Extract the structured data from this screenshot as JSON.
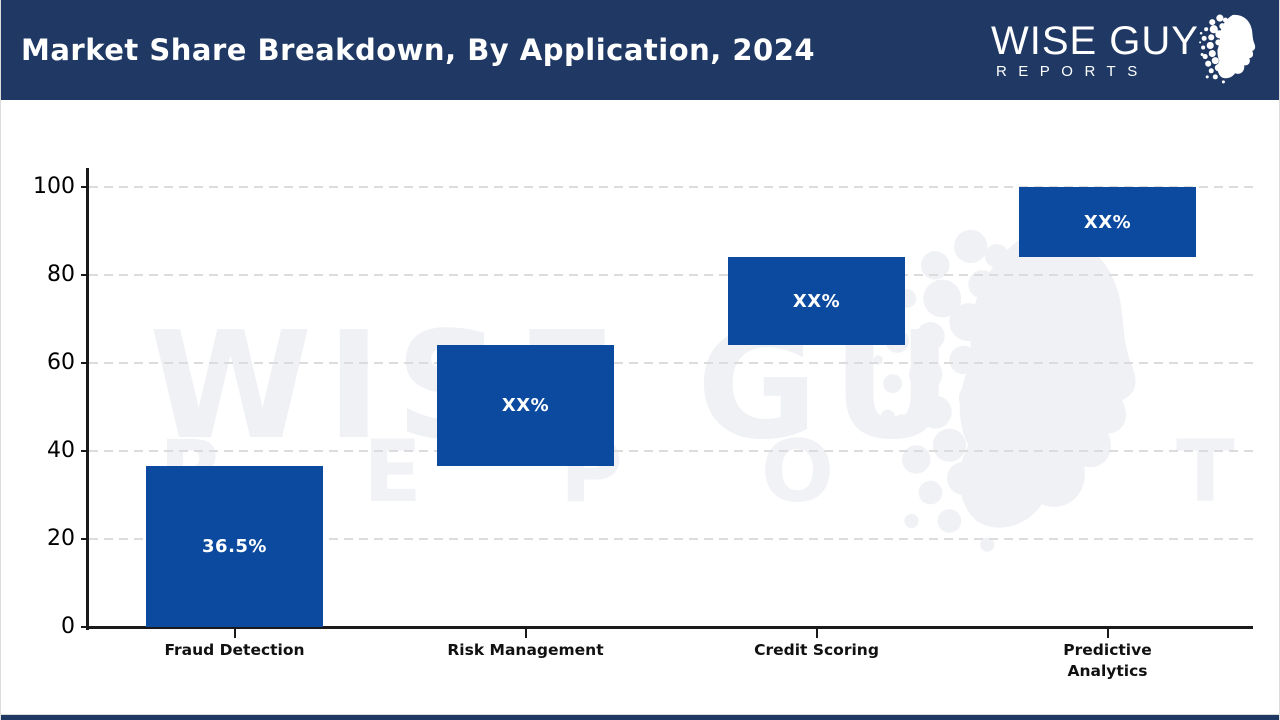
{
  "header": {
    "title": "Market Share Breakdown, By Application, 2024",
    "logo": {
      "line1": "WISE GUY",
      "line2": "REPORTS"
    }
  },
  "watermark": {
    "line1": "WISE GUY",
    "line2": "R E P O R T S"
  },
  "colors": {
    "header_bg": "#1F3864",
    "footer_bg": "#1F3864",
    "bar_blue": "#0B4A9F",
    "watermark_gray": "#F0F1F4",
    "grid_gray": "#DCDCDC",
    "axis_black": "#1A1A1A"
  },
  "chart_data": {
    "type": "bar",
    "subtype": "floating-waterfall",
    "title": "Market Share Breakdown, By Application, 2024",
    "categories": [
      "Fraud Detection",
      "Risk Management",
      "Credit Scoring",
      "Predictive Analytics"
    ],
    "category_lines": [
      [
        "Fraud Detection"
      ],
      [
        "Risk Management"
      ],
      [
        "Credit Scoring"
      ],
      [
        "Predictive",
        "Analytics"
      ]
    ],
    "segments": [
      {
        "category": "Fraud Detection",
        "start": 0,
        "end": 36.5,
        "label": "36.5%"
      },
      {
        "category": "Risk Management",
        "start": 36.5,
        "end": 64,
        "label": "XX%"
      },
      {
        "category": "Credit Scoring",
        "start": 64,
        "end": 84,
        "label": "XX%"
      },
      {
        "category": "Predictive Analytics",
        "start": 84,
        "end": 100,
        "label": "XX%"
      }
    ],
    "xlabel": "",
    "ylabel": "",
    "ylim": [
      0,
      100
    ],
    "yticks": [
      0,
      20,
      40,
      60,
      80,
      100
    ],
    "grid": "horizontal-dashed",
    "legend": "none",
    "bar_color": "#0B4A9F",
    "bar_label_color": "#FFFFFF"
  }
}
